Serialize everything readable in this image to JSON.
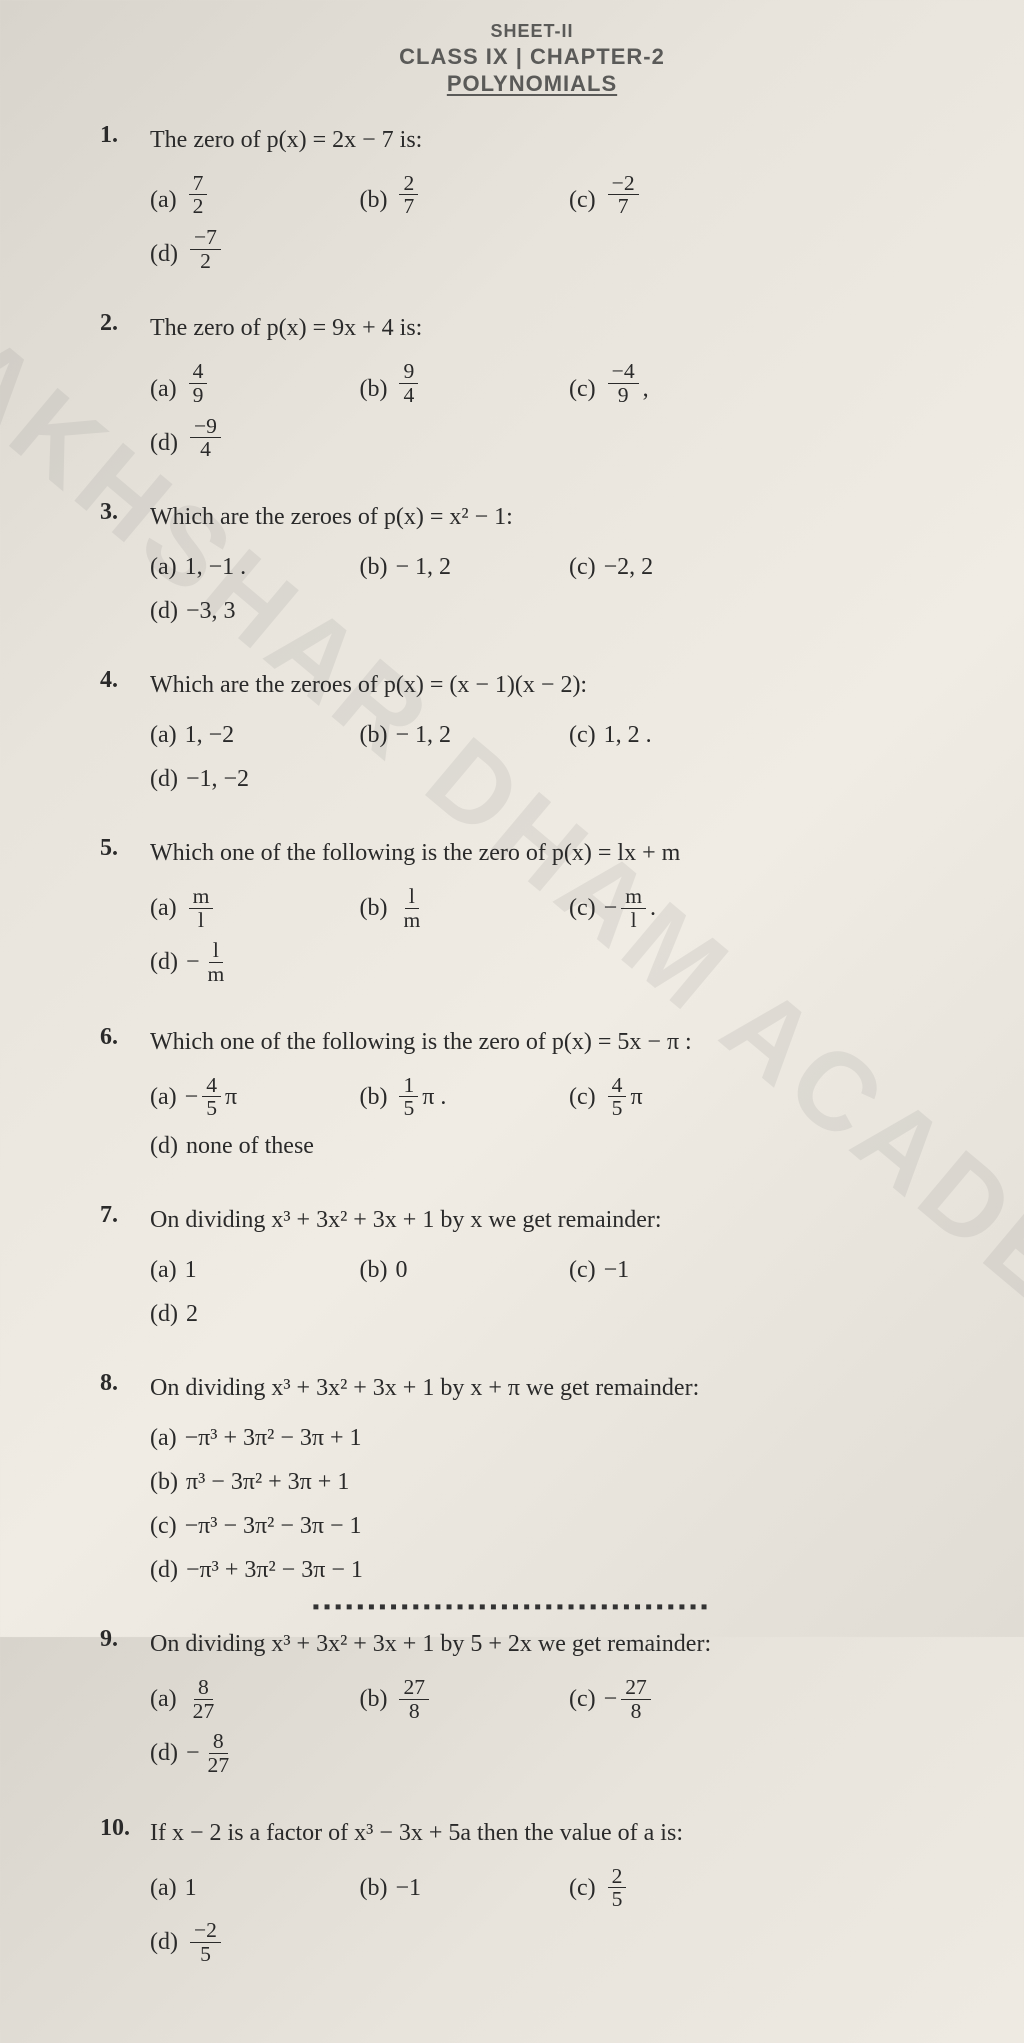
{
  "header": {
    "line1": "CLASS IX | CHAPTER-2",
    "line2": "POLYNOMIALS",
    "sheet": "SHEET-II"
  },
  "watermark": "AKHSHAR DHAM ACADE",
  "questions": [
    {
      "num": "1.",
      "stem_pre": "The zero of p(x) = 2x − 7 is:",
      "opts": [
        {
          "lbl": "(a)",
          "frac": {
            "n": "7",
            "d": "2"
          }
        },
        {
          "lbl": "(b)",
          "frac": {
            "n": "2",
            "d": "7"
          }
        },
        {
          "lbl": "(c)",
          "frac": {
            "n": "−2",
            "d": "7"
          }
        },
        {
          "lbl": "(d)",
          "frac": {
            "n": "−7",
            "d": "2"
          }
        }
      ]
    },
    {
      "num": "2.",
      "stem_pre": "The zero of p(x) = 9x + 4 is:",
      "opts": [
        {
          "lbl": "(a)",
          "frac": {
            "n": "4",
            "d": "9"
          }
        },
        {
          "lbl": "(b)",
          "frac": {
            "n": "9",
            "d": "4"
          }
        },
        {
          "lbl": "(c)",
          "frac": {
            "n": "−4",
            "d": "9"
          },
          "suffix": " ,"
        },
        {
          "lbl": "(d)",
          "frac": {
            "n": "−9",
            "d": "4"
          }
        }
      ]
    },
    {
      "num": "3.",
      "stem_pre": "Which are the zeroes of p(x) = x² − 1:",
      "opts": [
        {
          "lbl": "(a)",
          "text": "1, −1 ."
        },
        {
          "lbl": "(b)",
          "text": "− 1, 2"
        },
        {
          "lbl": "(c)",
          "text": "−2, 2"
        },
        {
          "lbl": "(d)",
          "text": "−3, 3"
        }
      ]
    },
    {
      "num": "4.",
      "stem_pre": "Which are the zeroes of p(x) = (x − 1)(x − 2):",
      "opts": [
        {
          "lbl": "(a)",
          "text": "1, −2"
        },
        {
          "lbl": "(b)",
          "text": "− 1, 2"
        },
        {
          "lbl": "(c)",
          "text": "1, 2 ."
        },
        {
          "lbl": "(d)",
          "text": "−1, −2"
        }
      ]
    },
    {
      "num": "5.",
      "stem_pre": "Which one of the following is the zero of p(x) = lx + m",
      "opts": [
        {
          "lbl": "(a)",
          "frac": {
            "n": "m",
            "d": "l"
          }
        },
        {
          "lbl": "(b)",
          "frac": {
            "n": "l",
            "d": "m"
          }
        },
        {
          "lbl": "(c)",
          "prefix": "−",
          "frac": {
            "n": "m",
            "d": "l"
          },
          "suffix": " ."
        },
        {
          "lbl": "(d)",
          "prefix": "−",
          "frac": {
            "n": "l",
            "d": "m"
          }
        }
      ]
    },
    {
      "num": "6.",
      "stem_pre": "Which one of the following is the zero of p(x) = 5x − π :",
      "opts": [
        {
          "lbl": "(a)",
          "prefix": "−",
          "frac": {
            "n": "4",
            "d": "5"
          },
          "suffix": "π"
        },
        {
          "lbl": "(b)",
          "frac": {
            "n": "1",
            "d": "5"
          },
          "suffix": "π ."
        },
        {
          "lbl": "(c)",
          "frac": {
            "n": "4",
            "d": "5"
          },
          "suffix": "π"
        },
        {
          "lbl": "(d)",
          "text": "none of these"
        }
      ]
    },
    {
      "num": "7.",
      "stem_pre": "On dividing x³ + 3x² + 3x + 1 by x we get remainder:",
      "opts": [
        {
          "lbl": "(a)",
          "text": "1"
        },
        {
          "lbl": "(b)",
          "text": "0"
        },
        {
          "lbl": "(c)",
          "text": "−1"
        },
        {
          "lbl": "(d)",
          "text": "2"
        }
      ]
    },
    {
      "num": "8.",
      "stem_pre": "On dividing x³ + 3x² + 3x + 1 by x + π we get remainder:",
      "stack": true,
      "opts": [
        {
          "lbl": "(a)",
          "text": "−π³ + 3π² − 3π + 1"
        },
        {
          "lbl": "(b)",
          "text": "π³ − 3π² + 3π + 1"
        },
        {
          "lbl": "(c)",
          "text": "−π³ − 3π² − 3π − 1"
        },
        {
          "lbl": "(d)",
          "text": "−π³ + 3π² − 3π − 1"
        }
      ]
    },
    {
      "num": "9.",
      "stem_pre": "On dividing x³ + 3x² + 3x + 1 by 5 + 2x we get remainder:",
      "opts": [
        {
          "lbl": "(a)",
          "frac": {
            "n": "8",
            "d": "27"
          }
        },
        {
          "lbl": "(b)",
          "frac": {
            "n": "27",
            "d": "8"
          }
        },
        {
          "lbl": "(c)",
          "prefix": "−",
          "frac": {
            "n": "27",
            "d": "8"
          }
        },
        {
          "lbl": "(d)",
          "prefix": "−",
          "frac": {
            "n": "8",
            "d": "27"
          }
        }
      ]
    },
    {
      "num": "10.",
      "stem_pre": "If x − 2 is a factor of x³ − 3x + 5a then the value of a is:",
      "opts": [
        {
          "lbl": "(a)",
          "text": "1"
        },
        {
          "lbl": "(b)",
          "text": "−1"
        },
        {
          "lbl": "(c)",
          "frac": {
            "n": "2",
            "d": "5"
          }
        },
        {
          "lbl": "(d)",
          "frac": {
            "n": "−2",
            "d": "5"
          }
        }
      ]
    }
  ],
  "dots": "▪▪▪▪▪▪▪▪▪▪▪▪▪▪▪▪▪▪▪▪▪▪▪▪▪▪▪▪▪▪▪▪▪▪▪▪"
}
